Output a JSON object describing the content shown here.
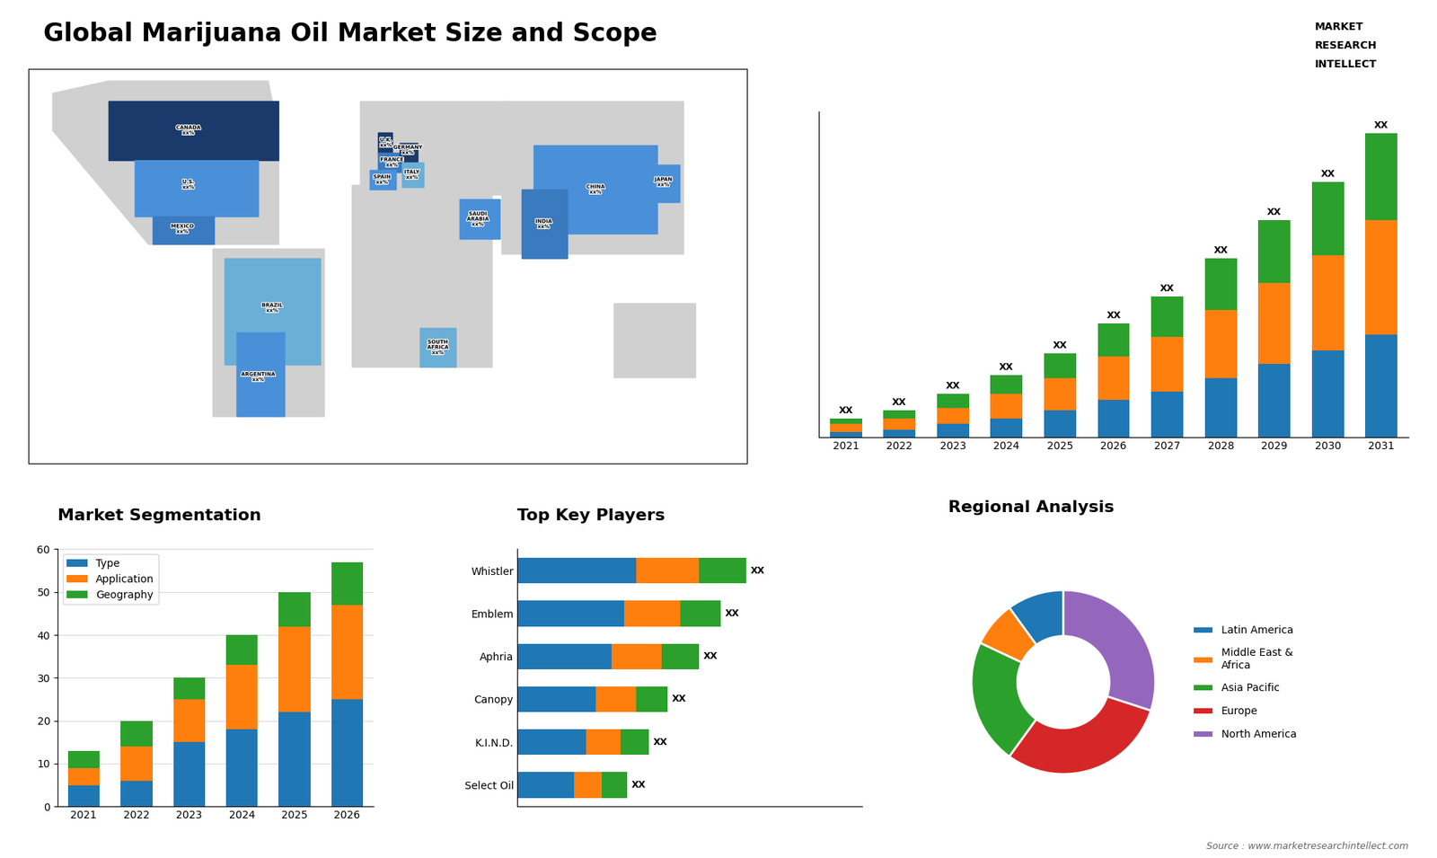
{
  "title": "Global Marijuana Oil Market Size and Scope",
  "logo": [
    "MARKET",
    "RESEARCH",
    "INTELLECT"
  ],
  "source": "Source : www.marketresearchintellect.com",
  "chart_data": [
    {
      "type": "map",
      "xlim": [
        -180,
        180
      ],
      "ylim": [
        -75,
        85
      ],
      "tick_labels": false,
      "land_color": "#d0d0d0",
      "land": [
        [
          [
            -168,
            60
          ],
          [
            -55,
            60
          ],
          [
            -55,
            14
          ],
          [
            -120,
            14
          ],
          [
            -168,
            60
          ]
        ],
        [
          [
            -88,
            -56
          ],
          [
            -32,
            -56
          ],
          [
            -32,
            12
          ],
          [
            -88,
            12
          ]
        ],
        [
          [
            -14,
            34
          ],
          [
            60,
            34
          ],
          [
            60,
            72
          ],
          [
            -14,
            72
          ]
        ],
        [
          [
            -18,
            -36
          ],
          [
            52,
            -36
          ],
          [
            52,
            38
          ],
          [
            -18,
            38
          ]
        ],
        [
          [
            24,
            -36
          ],
          [
            52,
            -36
          ],
          [
            52,
            38
          ],
          [
            24,
            38
          ]
        ],
        [
          [
            57,
            10
          ],
          [
            148,
            10
          ],
          [
            148,
            72
          ],
          [
            57,
            72
          ]
        ],
        [
          [
            113,
            -40
          ],
          [
            154,
            -40
          ],
          [
            154,
            -10
          ],
          [
            113,
            -10
          ]
        ],
        [
          [
            -168,
            60
          ],
          [
            -168,
            75
          ],
          [
            -140,
            80
          ],
          [
            -60,
            80
          ],
          [
            -55,
            60
          ]
        ]
      ],
      "regions": [
        {
          "label": "CANADA\nxx%",
          "color": "#1a3a6b",
          "label_x": -100,
          "label_y": 60,
          "points": [
            [
              -140,
              48
            ],
            [
              -55,
              48
            ],
            [
              -55,
              72
            ],
            [
              -140,
              72
            ]
          ]
        },
        {
          "label": "U.S.\nxx%",
          "color": "#4a90d9",
          "label_x": -100,
          "label_y": 38,
          "points": [
            [
              -127,
              25
            ],
            [
              -65,
              25
            ],
            [
              -65,
              48
            ],
            [
              -127,
              48
            ]
          ]
        },
        {
          "label": "MEXICO\nxx%",
          "color": "#3a7abf",
          "label_x": -103,
          "label_y": 20,
          "points": [
            [
              -118,
              14
            ],
            [
              -87,
              14
            ],
            [
              -87,
              25
            ],
            [
              -118,
              25
            ]
          ]
        },
        {
          "label": "BRAZIL\nxx%",
          "color": "#6baed6",
          "label_x": -58,
          "label_y": -12,
          "points": [
            [
              -82,
              -35
            ],
            [
              -34,
              -35
            ],
            [
              -34,
              8
            ],
            [
              -82,
              8
            ]
          ]
        },
        {
          "label": "ARGENTINA\nxx%",
          "color": "#4a90d9",
          "label_x": -65,
          "label_y": -40,
          "points": [
            [
              -76,
              -56
            ],
            [
              -52,
              -56
            ],
            [
              -52,
              -22
            ],
            [
              -76,
              -22
            ]
          ]
        },
        {
          "label": "U.K.\nxx%",
          "color": "#1a3a6b",
          "label_x": -1,
          "label_y": 55,
          "points": [
            [
              -5,
              50
            ],
            [
              2,
              50
            ],
            [
              2,
              59
            ],
            [
              -5,
              59
            ]
          ]
        },
        {
          "label": "FRANCE\nxx%",
          "color": "#3a7abf",
          "label_x": 2,
          "label_y": 47,
          "points": [
            [
              -5,
              43
            ],
            [
              8,
              43
            ],
            [
              8,
              51
            ],
            [
              -5,
              51
            ]
          ]
        },
        {
          "label": "SPAIN\nxx%",
          "color": "#4a90d9",
          "label_x": -3,
          "label_y": 40,
          "points": [
            [
              -9,
              36
            ],
            [
              4,
              36
            ],
            [
              4,
              44
            ],
            [
              -9,
              44
            ]
          ]
        },
        {
          "label": "GERMANY\nxx%",
          "color": "#1a3a6b",
          "label_x": 10,
          "label_y": 52,
          "points": [
            [
              6,
              47
            ],
            [
              15,
              47
            ],
            [
              15,
              55
            ],
            [
              6,
              55
            ]
          ]
        },
        {
          "label": "ITALY\nxx%",
          "color": "#6baed6",
          "label_x": 12,
          "label_y": 42,
          "points": [
            [
              7,
              37
            ],
            [
              18,
              37
            ],
            [
              18,
              47
            ],
            [
              7,
              47
            ]
          ]
        },
        {
          "label": "SAUDI\nARABIA\nxx%",
          "color": "#4a90d9",
          "label_x": 45,
          "label_y": 24,
          "points": [
            [
              36,
              16
            ],
            [
              56,
              16
            ],
            [
              56,
              32
            ],
            [
              36,
              32
            ]
          ]
        },
        {
          "label": "SOUTH\nAFRICA\nxx%",
          "color": "#6baed6",
          "label_x": 25,
          "label_y": -28,
          "points": [
            [
              16,
              -36
            ],
            [
              34,
              -36
            ],
            [
              34,
              -20
            ],
            [
              16,
              -20
            ]
          ]
        },
        {
          "label": "CHINA\nxx%",
          "color": "#4a90d9",
          "label_x": 104,
          "label_y": 36,
          "points": [
            [
              73,
              18
            ],
            [
              135,
              18
            ],
            [
              135,
              54
            ],
            [
              73,
              54
            ]
          ]
        },
        {
          "label": "INDIA\nxx%",
          "color": "#3a7abf",
          "label_x": 78,
          "label_y": 22,
          "points": [
            [
              67,
              8
            ],
            [
              90,
              8
            ],
            [
              90,
              36
            ],
            [
              67,
              36
            ]
          ]
        },
        {
          "label": "JAPAN\nxx%",
          "color": "#4a90d9",
          "label_x": 138,
          "label_y": 39,
          "points": [
            [
              130,
              31
            ],
            [
              146,
              31
            ],
            [
              146,
              46
            ],
            [
              130,
              46
            ]
          ]
        }
      ]
    },
    {
      "type": "bar",
      "stacked": true,
      "tick_labels": "x",
      "categories": [
        "2021",
        "2022",
        "2023",
        "2024",
        "2025",
        "2026",
        "2027",
        "2028",
        "2029",
        "2030",
        "2031"
      ],
      "ylim": [
        0,
        120
      ],
      "series": [
        {
          "values": [
            2,
            3,
            5,
            7,
            10,
            14,
            17,
            22,
            27,
            32,
            38
          ]
        },
        {
          "values": [
            3,
            4,
            6,
            9,
            12,
            16,
            20,
            25,
            30,
            35,
            42
          ]
        },
        {
          "values": [
            2,
            3,
            5,
            7,
            9,
            12,
            15,
            19,
            23,
            27,
            32
          ],
          "value_labels": [
            "XX",
            "XX",
            "XX",
            "XX",
            "XX",
            "XX",
            "XX",
            "XX",
            "XX",
            "XX",
            "XX"
          ]
        }
      ]
    },
    {
      "type": "bar",
      "stacked": true,
      "title": "Market Segmentation",
      "categories": [
        "2021",
        "2022",
        "2023",
        "2024",
        "2025",
        "2026"
      ],
      "ylim": [
        0,
        60
      ],
      "yticks": [
        0,
        10,
        20,
        30,
        40,
        50,
        60
      ],
      "grid": true,
      "legend": "upper left",
      "series": [
        {
          "name": "Type",
          "values": [
            5,
            6,
            15,
            18,
            22,
            25
          ]
        },
        {
          "name": "Application",
          "values": [
            4,
            8,
            10,
            15,
            20,
            22
          ]
        },
        {
          "name": "Geography",
          "values": [
            4,
            6,
            5,
            7,
            8,
            10
          ]
        }
      ]
    },
    {
      "type": "bar",
      "stacked": true,
      "orientation": "horizontal",
      "title": "Top Key Players",
      "tick_labels": "y",
      "categories": [
        "Whistler",
        "Emblem",
        "Aphria",
        "Canopy",
        "K.I.N.D.",
        "Select Oil"
      ],
      "xlim": [
        0,
        110
      ],
      "series": [
        {
          "values": [
            38,
            34,
            30,
            25,
            22,
            18
          ]
        },
        {
          "values": [
            20,
            18,
            16,
            13,
            11,
            9
          ]
        },
        {
          "values": [
            15,
            13,
            12,
            10,
            9,
            8
          ],
          "value_labels": [
            "XX",
            "XX",
            "XX",
            "XX",
            "XX",
            "XX"
          ]
        }
      ]
    },
    {
      "type": "donut",
      "title": "Regional Analysis",
      "legend": "center left",
      "categories": [
        "Latin America",
        "Middle East &\nAfrica",
        "Asia Pacific",
        "Europe",
        "North America"
      ],
      "values": [
        10,
        8,
        22,
        30,
        30
      ]
    }
  ]
}
